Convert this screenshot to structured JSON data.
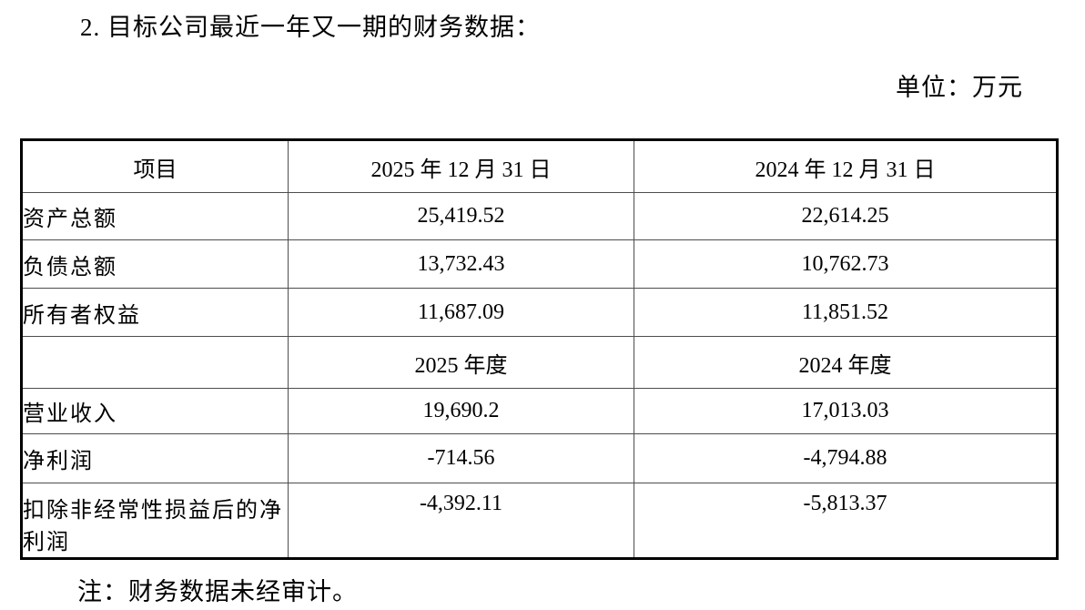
{
  "page": {
    "title": "2. 目标公司最近一年又一期的财务数据：",
    "unit_label": "单位：万元",
    "note": "注：财务数据未经审计。"
  },
  "table": {
    "header": {
      "item": "项目",
      "date_2025": "2025 年 12 月 31 日",
      "date_2024": "2024 年 12 月 31 日"
    },
    "balance_rows": [
      {
        "item": "资产总额",
        "v2025": "25,419.52",
        "v2024": "22,614.25"
      },
      {
        "item": "负债总额",
        "v2025": "13,732.43",
        "v2024": "10,762.73"
      },
      {
        "item": "所有者权益",
        "v2025": "11,687.09",
        "v2024": "11,851.52"
      }
    ],
    "period_header": {
      "item": "",
      "p2025": "2025 年度",
      "p2024_bold": "2024 年",
      "p2024_light": "度"
    },
    "income_rows": [
      {
        "item": "营业收入",
        "v2025": "19,690.2",
        "v2024": "17,013.03"
      },
      {
        "item": "净利润",
        "v2025": "-714.56",
        "v2024": "-4,794.88"
      },
      {
        "item": "扣除非经常性损益后的净利润",
        "v2025": "-4,392.11",
        "v2024": "-5,813.37"
      }
    ]
  }
}
